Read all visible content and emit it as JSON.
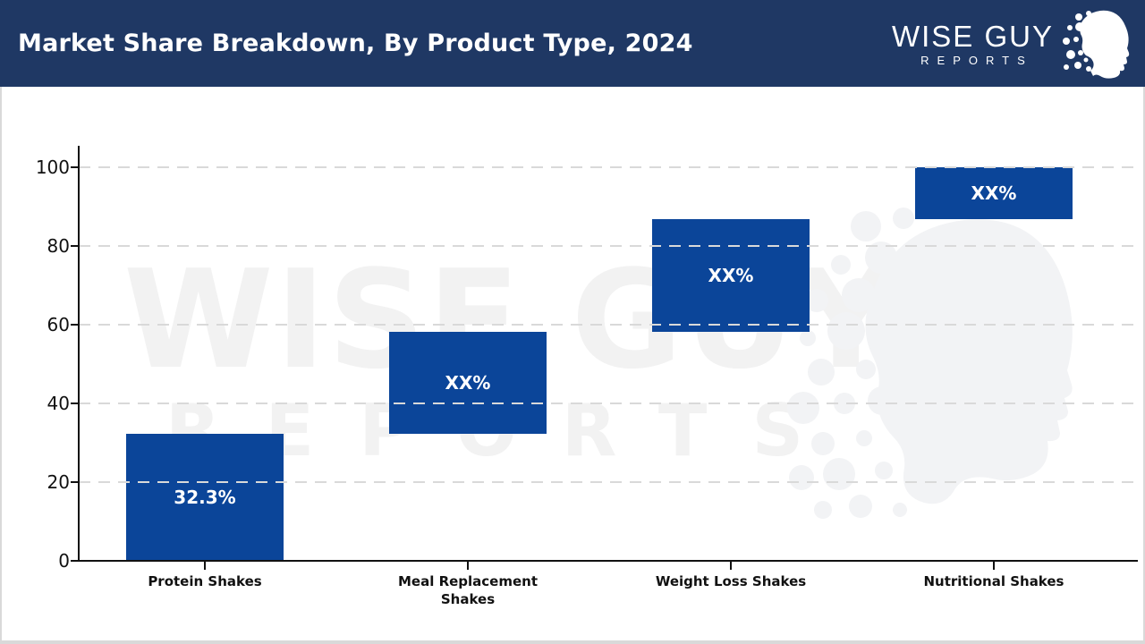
{
  "header": {
    "title": "Market Share Breakdown, By Product Type, 2024",
    "background_color": "#1f3864",
    "logo": {
      "name": "WISE GUY",
      "sub": "REPORTS"
    }
  },
  "watermark": {
    "big": "WISE GUY",
    "sub": "REPORTS"
  },
  "chart_data": {
    "type": "bar",
    "variant": "waterfall",
    "title": "Market Share Breakdown, By Product Type, 2024",
    "categories": [
      "Protein Shakes",
      "Meal Replacement Shakes",
      "Weight Loss Shakes",
      "Nutritional Shakes"
    ],
    "categories_display": [
      [
        "Protein Shakes"
      ],
      [
        "Meal Replacement",
        "Shakes"
      ],
      [
        "Weight Loss Shakes"
      ],
      [
        "Nutritional Shakes"
      ]
    ],
    "bars": [
      {
        "category": "Protein Shakes",
        "start": 0,
        "end": 32.3,
        "label": "32.3%"
      },
      {
        "category": "Meal Replacement Shakes",
        "start": 32.3,
        "end": 58.2,
        "label": "XX%"
      },
      {
        "category": "Weight Loss Shakes",
        "start": 58.2,
        "end": 86.8,
        "label": "XX%"
      },
      {
        "category": "Nutritional Shakes",
        "start": 86.8,
        "end": 100,
        "label": "XX%"
      }
    ],
    "y_ticks": [
      "0",
      "20",
      "40",
      "60",
      "80",
      "100"
    ],
    "ylim": [
      0,
      105
    ],
    "xlabel": "",
    "ylabel": "",
    "legend": null,
    "grid": "horizontal-dashed",
    "colors": {
      "bar": "#0b4599",
      "bar_label": "#ffffff",
      "axis": "#111111",
      "grid_line": "#d9d9d9",
      "tick_label": "#111111",
      "watermark": "#f2f2f2",
      "header_background": "#1f3864"
    }
  }
}
